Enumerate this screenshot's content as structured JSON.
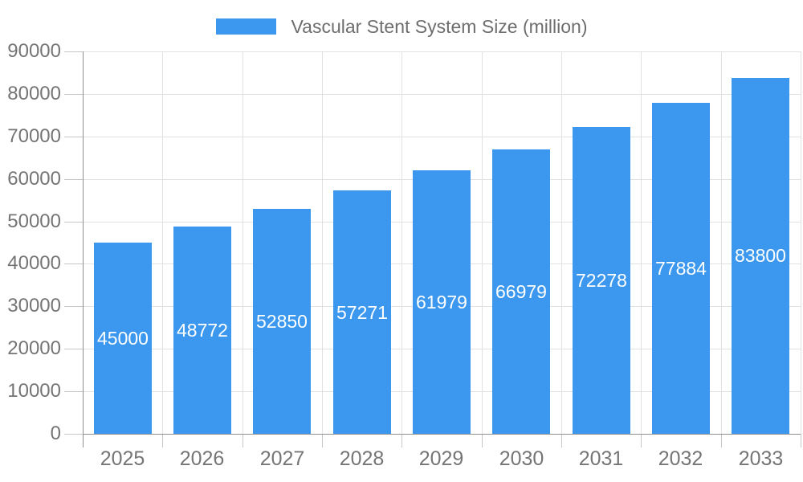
{
  "legend": {
    "label": "Vascular Stent System Size (million)"
  },
  "chart_data": {
    "type": "bar",
    "title": "Vascular Stent System Size (million)",
    "categories": [
      "2025",
      "2026",
      "2027",
      "2028",
      "2029",
      "2030",
      "2031",
      "2032",
      "2033"
    ],
    "series": [
      {
        "name": "Vascular Stent System Size (million)",
        "values": [
          45000,
          48772,
          52850,
          57271,
          61979,
          66979,
          72278,
          77884,
          83800
        ]
      }
    ],
    "xlabel": "",
    "ylabel": "",
    "ylim": [
      0,
      90000
    ],
    "ytick_step": 10000,
    "yticks": [
      0,
      10000,
      20000,
      30000,
      40000,
      50000,
      60000,
      70000,
      80000,
      90000
    ],
    "grid": true,
    "legend_position": "top",
    "bar_value_labels_visible": true,
    "colors": {
      "bar": "#3b98ee",
      "bar_label": "#ffffff",
      "axis_line": "#8f8f8f",
      "tick": "#c6c6c6",
      "gridline": "#e2e2e2",
      "axis_text": "#757575",
      "legend_text": "#6e6e6e",
      "background": "#ffffff"
    }
  }
}
